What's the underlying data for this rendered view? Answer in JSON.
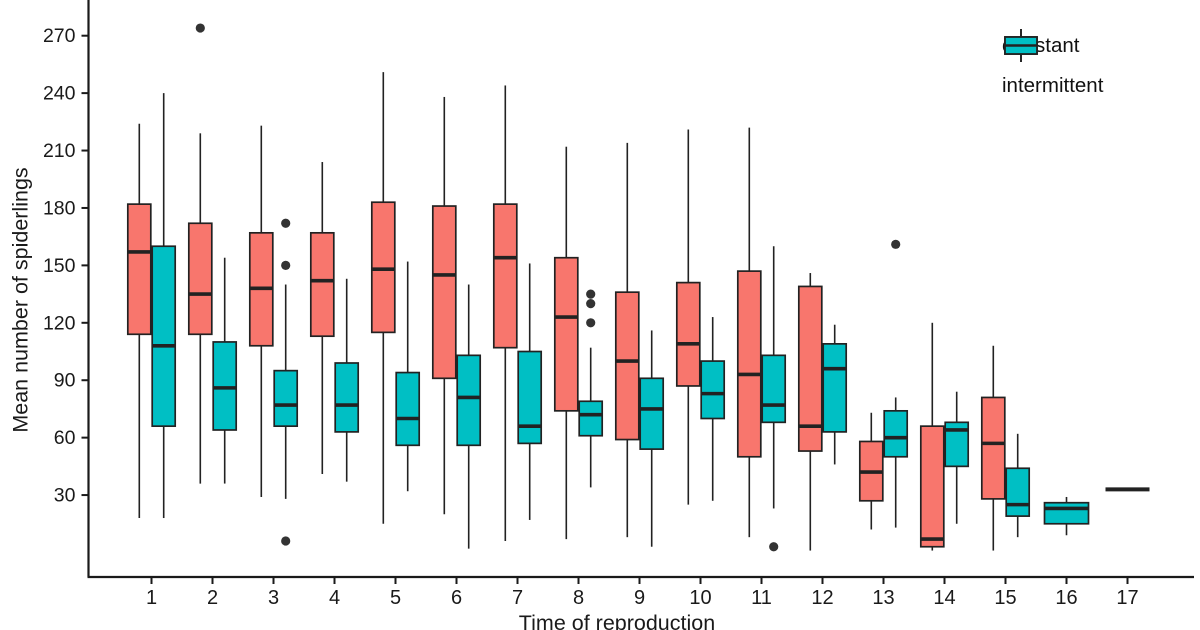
{
  "figure": {
    "background": "#ffffff",
    "axis_color": "#1a1a1a",
    "text_color": "#1a1a1a",
    "box_border_color": "#222222",
    "outlier_color": "#333333"
  },
  "legend": {
    "position": "top-right-inside",
    "entries": [
      {
        "label": "constant",
        "color": "#F8766D"
      },
      {
        "label": "intermittent",
        "color": "#00BFC4"
      }
    ]
  },
  "chart_data": {
    "type": "boxplot",
    "title": "",
    "xlabel": "Time of reproduction",
    "ylabel": "Mean number of spiderlings",
    "categories": [
      1,
      2,
      3,
      4,
      5,
      6,
      7,
      8,
      9,
      10,
      11,
      12,
      13,
      14,
      15,
      16,
      17
    ],
    "yticks": [
      30,
      60,
      90,
      120,
      150,
      180,
      210,
      240,
      270
    ],
    "ylim": [
      -13,
      289
    ],
    "grid": false,
    "legend_position": "top-right inside panel",
    "series": [
      {
        "name": "constant",
        "color": "#F8766D",
        "boxes": [
          {
            "x": 1,
            "low": 18,
            "q1": 114,
            "median": 157,
            "q3": 182,
            "high": 224,
            "outliers": []
          },
          {
            "x": 2,
            "low": 36,
            "q1": 114,
            "median": 135,
            "q3": 172,
            "high": 219,
            "outliers": [
              274
            ]
          },
          {
            "x": 3,
            "low": 29,
            "q1": 108,
            "median": 138,
            "q3": 167,
            "high": 223,
            "outliers": []
          },
          {
            "x": 4,
            "low": 41,
            "q1": 113,
            "median": 142,
            "q3": 167,
            "high": 204,
            "outliers": []
          },
          {
            "x": 5,
            "low": 15,
            "q1": 115,
            "median": 148,
            "q3": 183,
            "high": 251,
            "outliers": []
          },
          {
            "x": 6,
            "low": 20,
            "q1": 91,
            "median": 145,
            "q3": 181,
            "high": 238,
            "outliers": []
          },
          {
            "x": 7,
            "low": 6,
            "q1": 107,
            "median": 154,
            "q3": 182,
            "high": 244,
            "outliers": []
          },
          {
            "x": 8,
            "low": 7,
            "q1": 74,
            "median": 123,
            "q3": 154,
            "high": 212,
            "outliers": []
          },
          {
            "x": 9,
            "low": 8,
            "q1": 59,
            "median": 100,
            "q3": 136,
            "high": 214,
            "outliers": []
          },
          {
            "x": 10,
            "low": 25,
            "q1": 87,
            "median": 109,
            "q3": 141,
            "high": 221,
            "outliers": []
          },
          {
            "x": 11,
            "low": 8,
            "q1": 50,
            "median": 93,
            "q3": 147,
            "high": 222,
            "outliers": []
          },
          {
            "x": 12,
            "low": 1,
            "q1": 53,
            "median": 66,
            "q3": 139,
            "high": 146,
            "outliers": []
          },
          {
            "x": 13,
            "low": 12,
            "q1": 27,
            "median": 42,
            "q3": 58,
            "high": 73,
            "outliers": []
          },
          {
            "x": 14,
            "low": 1,
            "q1": 3,
            "median": 7,
            "q3": 66,
            "high": 120,
            "outliers": []
          },
          {
            "x": 15,
            "low": 1,
            "q1": 28,
            "median": 57,
            "q3": 81,
            "high": 108,
            "outliers": []
          },
          null,
          {
            "x": 17,
            "low": 33,
            "q1": 33,
            "median": 33,
            "q3": 33,
            "high": 33,
            "outliers": [],
            "single": true,
            "full_width": true
          }
        ]
      },
      {
        "name": "intermittent",
        "color": "#00BFC4",
        "boxes": [
          {
            "x": 1,
            "low": 18,
            "q1": 66,
            "median": 108,
            "q3": 160,
            "high": 240,
            "outliers": []
          },
          {
            "x": 2,
            "low": 36,
            "q1": 64,
            "median": 86,
            "q3": 110,
            "high": 154,
            "outliers": []
          },
          {
            "x": 3,
            "low": 28,
            "q1": 66,
            "median": 77,
            "q3": 95,
            "high": 140,
            "outliers": [
              172,
              150,
              6
            ]
          },
          {
            "x": 4,
            "low": 37,
            "q1": 63,
            "median": 77,
            "q3": 99,
            "high": 143,
            "outliers": []
          },
          {
            "x": 5,
            "low": 32,
            "q1": 56,
            "median": 70,
            "q3": 94,
            "high": 152,
            "outliers": []
          },
          {
            "x": 6,
            "low": 2,
            "q1": 56,
            "median": 81,
            "q3": 103,
            "high": 140,
            "outliers": []
          },
          {
            "x": 7,
            "low": 17,
            "q1": 57,
            "median": 66,
            "q3": 105,
            "high": 151,
            "outliers": []
          },
          {
            "x": 8,
            "low": 34,
            "q1": 61,
            "median": 72,
            "q3": 79,
            "high": 107,
            "outliers": [
              135,
              130,
              120
            ]
          },
          {
            "x": 9,
            "low": 3,
            "q1": 54,
            "median": 75,
            "q3": 91,
            "high": 116,
            "outliers": []
          },
          {
            "x": 10,
            "low": 27,
            "q1": 70,
            "median": 83,
            "q3": 100,
            "high": 123,
            "outliers": []
          },
          {
            "x": 11,
            "low": 23,
            "q1": 68,
            "median": 77,
            "q3": 103,
            "high": 160,
            "outliers": [
              3
            ]
          },
          {
            "x": 12,
            "low": 46,
            "q1": 63,
            "median": 96,
            "q3": 109,
            "high": 119,
            "outliers": []
          },
          {
            "x": 13,
            "low": 13,
            "q1": 50,
            "median": 60,
            "q3": 74,
            "high": 81,
            "outliers": [
              161
            ]
          },
          {
            "x": 14,
            "low": 15,
            "q1": 45,
            "median": 64,
            "q3": 68,
            "high": 84,
            "outliers": []
          },
          {
            "x": 15,
            "low": 8,
            "q1": 19,
            "median": 25,
            "q3": 44,
            "high": 62,
            "outliers": []
          },
          {
            "x": 16,
            "low": 9,
            "q1": 15,
            "median": 23,
            "q3": 26,
            "high": 29,
            "outliers": [],
            "full_width": true
          },
          null
        ]
      }
    ]
  }
}
